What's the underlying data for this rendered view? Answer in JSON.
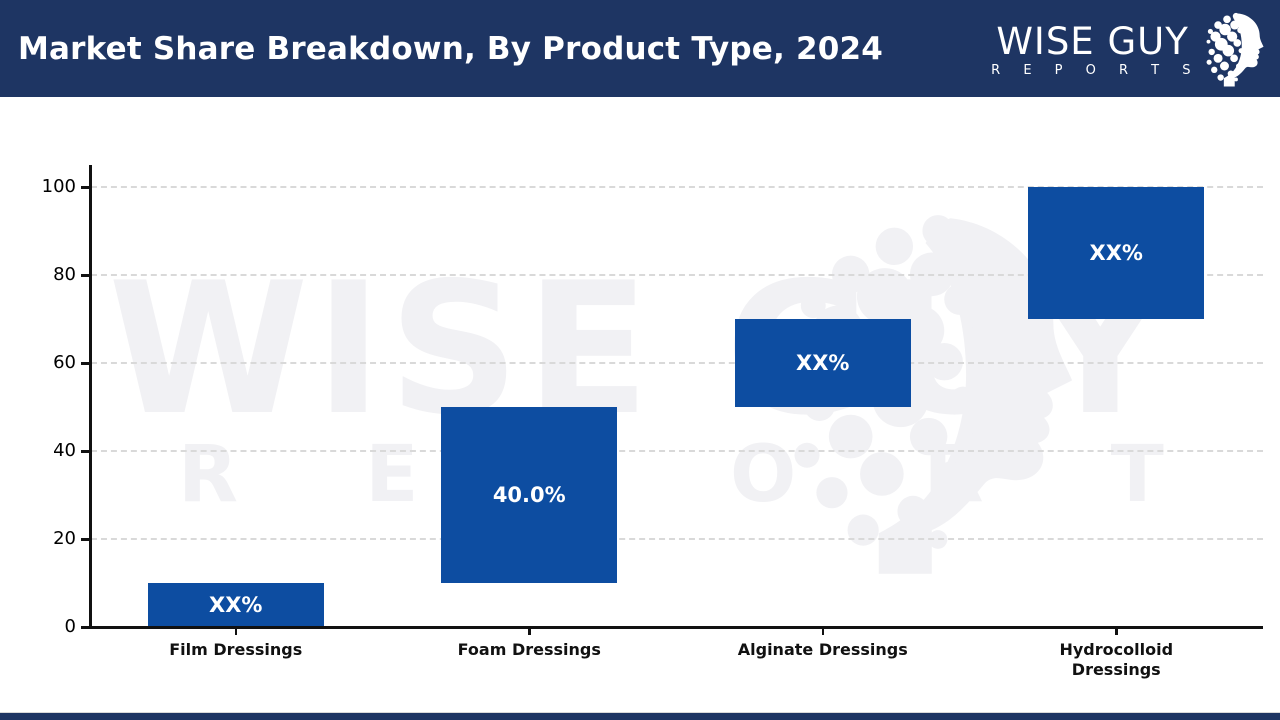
{
  "header": {
    "title": "Market Share Breakdown, By Product Type, 2024",
    "bg_color": "#1e3563",
    "logo": {
      "line1": "WISE GUY",
      "line2": "R E P O R T S"
    }
  },
  "watermark": {
    "line1": "WISE GUY",
    "line2": "R E P O R T S"
  },
  "chart_data": {
    "type": "bar",
    "subtype": "waterfall",
    "title": "Market Share Breakdown, By Product Type, 2024",
    "xlabel": "",
    "ylabel": "",
    "categories": [
      "Film Dressings",
      "Foam Dressings",
      "Alginate Dressings",
      "Hydrocolloid Dressings"
    ],
    "segments": [
      {
        "category": "Film Dressings",
        "start": 0,
        "end": 10,
        "label": "XX%"
      },
      {
        "category": "Foam Dressings",
        "start": 10,
        "end": 50,
        "label": "40.0%"
      },
      {
        "category": "Alginate Dressings",
        "start": 50,
        "end": 70,
        "label": "XX%"
      },
      {
        "category": "Hydrocolloid Dressings",
        "start": 70,
        "end": 100,
        "label": "XX%"
      }
    ],
    "yticks": [
      0,
      20,
      40,
      60,
      80,
      100
    ],
    "ylim": [
      0,
      105
    ],
    "grid": "horizontal-dashed",
    "legend": "none",
    "bar_color": "#0d4da1",
    "bar_label_color": "#ffffff",
    "grid_color": "#d9d9d9",
    "axis_color": "#111111"
  },
  "colors": {
    "header_bg": "#1e3563",
    "footer_bg": "#1e3563",
    "watermark": "#f1f1f4",
    "background": "#ffffff"
  }
}
